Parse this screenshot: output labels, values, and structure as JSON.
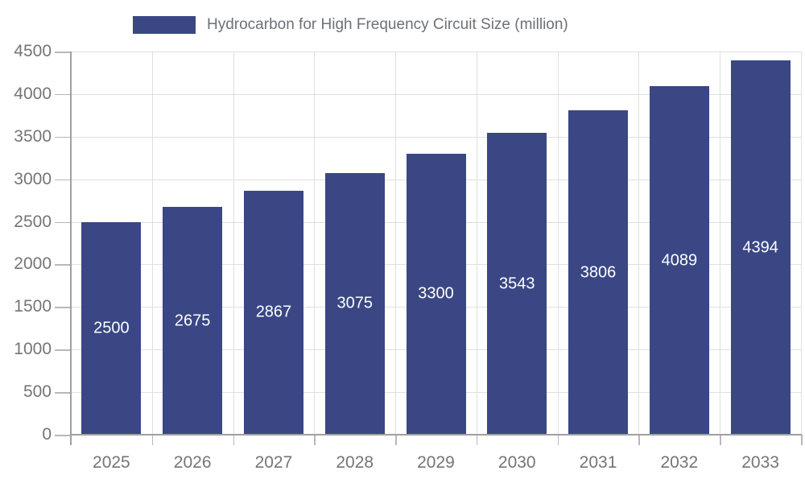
{
  "chart_data": {
    "type": "bar",
    "title": "",
    "legend": {
      "position": "top",
      "entries": [
        "Hydrocarbon for High Frequency Circuit Size (million)"
      ]
    },
    "series": [
      {
        "name": "Hydrocarbon for High Frequency Circuit Size (million)",
        "values": [
          2500,
          2675,
          2867,
          3075,
          3300,
          3543,
          3806,
          4089,
          4394
        ]
      }
    ],
    "categories": [
      "2025",
      "2026",
      "2027",
      "2028",
      "2029",
      "2030",
      "2031",
      "2032",
      "2033"
    ],
    "xlabel": "",
    "ylabel": "",
    "ylim": [
      0,
      4500
    ],
    "ytick_step": 500,
    "yticks": [
      "0",
      "500",
      "1000",
      "1500",
      "2000",
      "2500",
      "3000",
      "3500",
      "4000",
      "4500"
    ],
    "grid": true,
    "value_labels_inside_bars": true,
    "colors": {
      "bar": "#3A4784",
      "bar_value_label": "#ffffff",
      "axis_line": "#a0a0a0",
      "tick": "#b8b8b8",
      "gridline": "#e0e0e0",
      "axis_text": "#757575",
      "legend_text": "#6e7079"
    }
  }
}
